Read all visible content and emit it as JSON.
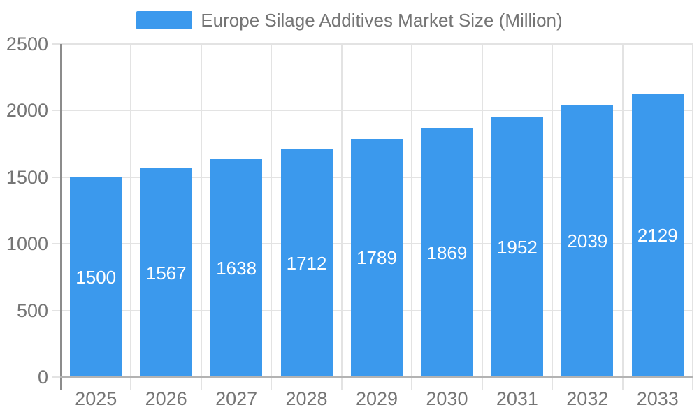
{
  "legend": {
    "label": "Europe Silage Additives Market Size (Million)"
  },
  "chart_data": {
    "type": "bar",
    "title": "Europe Silage Additives Market Size (Million)",
    "categories": [
      "2025",
      "2026",
      "2027",
      "2028",
      "2029",
      "2030",
      "2031",
      "2032",
      "2033"
    ],
    "values": [
      1500,
      1567,
      1638,
      1712,
      1789,
      1869,
      1952,
      2039,
      2129
    ],
    "xlabel": "",
    "ylabel": "",
    "ylim": [
      0,
      2500
    ],
    "ytick_interval": 500,
    "ytick_labels": [
      "0",
      "500",
      "1000",
      "1500",
      "2000",
      "2500"
    ],
    "grid": true,
    "legend_position": "top",
    "colors": {
      "bar": "#3B99ED",
      "value_label": "#FFFFFF",
      "axis_text": "#757575",
      "grid_line": "#E3E3E3",
      "y_axis_line": "#8C8C8C",
      "x_axis_line": "#B3B3B3"
    }
  }
}
